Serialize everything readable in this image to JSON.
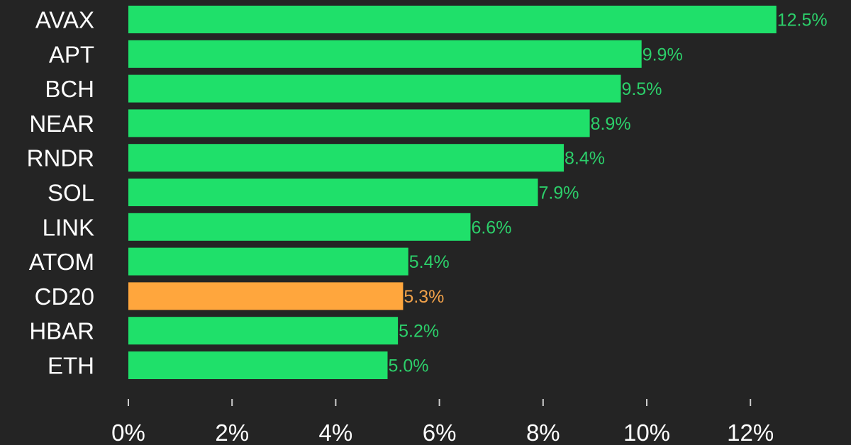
{
  "chart_data": {
    "type": "bar",
    "orientation": "horizontal",
    "title": "",
    "xlabel": "",
    "ylabel": "",
    "categories": [
      "AVAX",
      "APT",
      "BCH",
      "NEAR",
      "RNDR",
      "SOL",
      "LINK",
      "ATOM",
      "CD20",
      "HBAR",
      "ETH"
    ],
    "values": [
      12.5,
      9.9,
      9.5,
      8.9,
      8.4,
      7.9,
      6.6,
      5.4,
      5.3,
      5.2,
      5.0
    ],
    "value_labels": [
      "12.5%",
      "9.9%",
      "9.5%",
      "8.9%",
      "8.4%",
      "7.9%",
      "6.6%",
      "5.4%",
      "5.3%",
      "5.2%",
      "5.0%"
    ],
    "highlight": "CD20",
    "xlim": [
      0,
      13.5
    ],
    "xticks": [
      0,
      2,
      4,
      6,
      8,
      10,
      12
    ],
    "xtick_labels": [
      "0%",
      "2%",
      "4%",
      "6%",
      "8%",
      "10%",
      "12%"
    ],
    "grid": false,
    "colors": {
      "background": "#242424",
      "bar": "#1fe06a",
      "bar_highlight": "#ffa63d",
      "label": "#2ccf6a",
      "label_highlight": "#f2a24a",
      "text": "#ffffff"
    }
  }
}
